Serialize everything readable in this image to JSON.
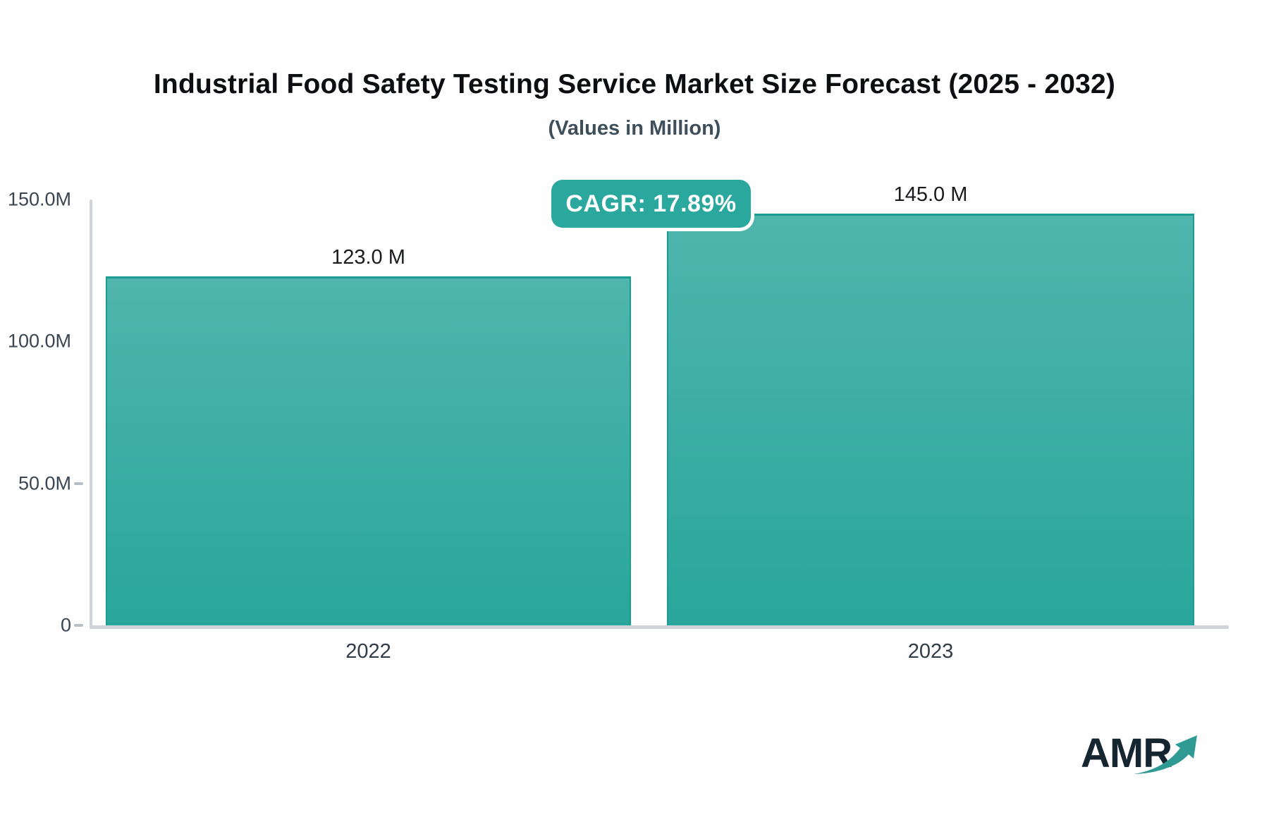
{
  "header": {
    "title": "Industrial Food Safety Testing Service Market Size Forecast (2025 - 2032)",
    "subtitle": "(Values in Million)"
  },
  "badge": {
    "label": "CAGR: 17.89%",
    "bg_color": "#2BA89E",
    "text_color": "#FFFFFF"
  },
  "chart_data": {
    "type": "bar",
    "categories": [
      "2022",
      "2023"
    ],
    "values": [
      123.0,
      145.0
    ],
    "value_labels": [
      "123.0 M",
      "145.0 M"
    ],
    "unit": "Million",
    "ylim": [
      0,
      150
    ],
    "yticks": [
      {
        "label": "0",
        "value": 0,
        "tick": true
      },
      {
        "label": "50.0M",
        "value": 50,
        "tick": true
      },
      {
        "label": "100.0M",
        "value": 100,
        "tick": false
      },
      {
        "label": "150.0M",
        "value": 150,
        "tick": false
      }
    ],
    "grid": false,
    "legend": false,
    "bar_fill_top": "#50B5AD",
    "bar_fill_bottom": "#29A69B",
    "bar_stroke": "#1B9C92",
    "axis_color": "#CFD4DA"
  },
  "logo": {
    "text": "AMR",
    "text_color": "#152631",
    "arrow_color": "#2F9A93"
  }
}
